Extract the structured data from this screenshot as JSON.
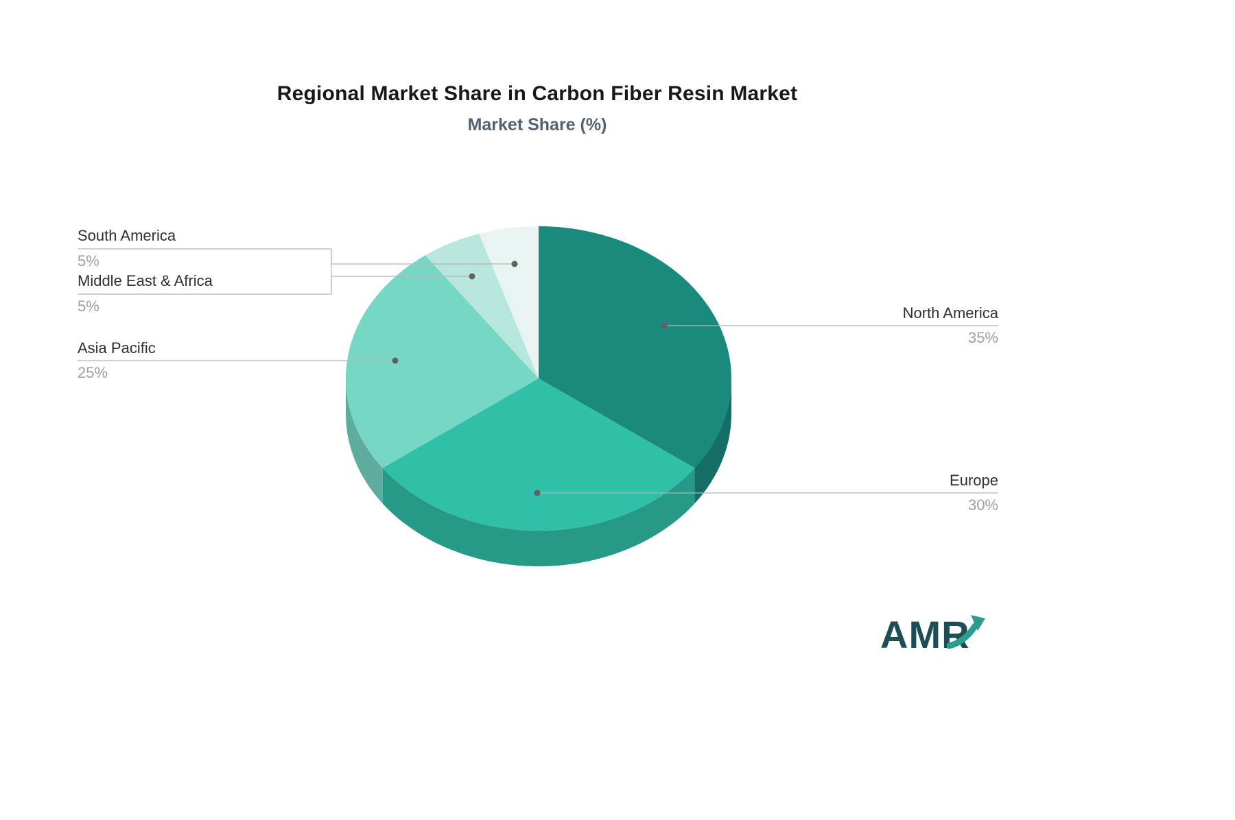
{
  "title": "Regional Market Share in Carbon Fiber Resin Market",
  "subtitle": "Market Share (%)",
  "logo": {
    "text": "AMR"
  },
  "colors": {
    "title": "#15191e",
    "subtitle": "#546170",
    "label": "#2d2f31",
    "value": "#9aa0a5",
    "leader": "#b5b5b5",
    "dot": "#606060",
    "logo_text": "#1d4e56",
    "logo_arrow": "#2a9d8f"
  },
  "chart_data": {
    "type": "pie",
    "style": "3d",
    "title": "Regional Market Share in Carbon Fiber Resin Market",
    "subtitle": "Market Share (%)",
    "unit": "%",
    "start_angle_deg": -90,
    "direction": "clockwise",
    "legend_position": "callout-labels",
    "slices": [
      {
        "label": "North America",
        "value": 35,
        "display": "35%",
        "color": "#1a8a7e"
      },
      {
        "label": "Europe",
        "value": 30,
        "display": "30%",
        "color": "#30bfa9"
      },
      {
        "label": "Asia Pacific",
        "value": 25,
        "display": "25%",
        "color": "#76d7c4"
      },
      {
        "label": "Middle East & Africa",
        "value": 5,
        "display": "5%",
        "color": "#b7e7dc"
      },
      {
        "label": "South America",
        "value": 5,
        "display": "5%",
        "color": "#e8f4f1"
      }
    ]
  }
}
